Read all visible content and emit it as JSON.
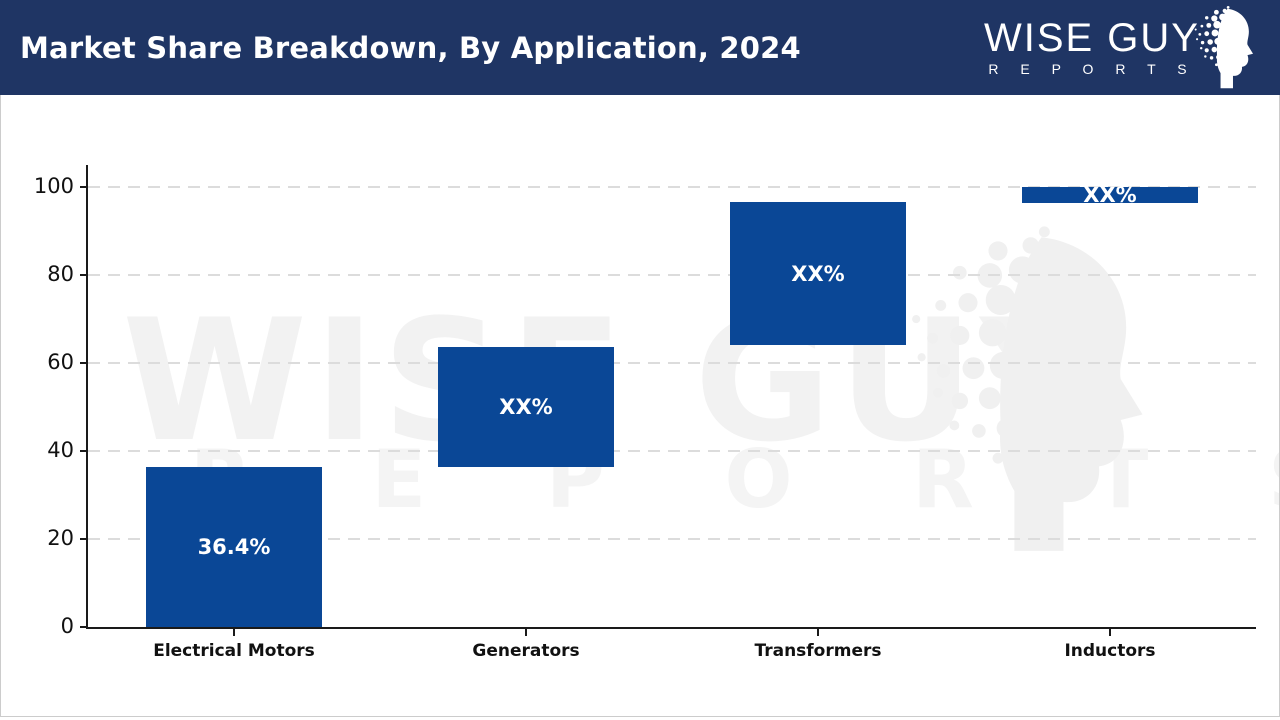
{
  "header": {
    "title": "Market Share Breakdown, By Application, 2024",
    "brand_line1": "WISE GUY",
    "brand_line2": "R E P O R T S",
    "bg_color": "#1f3564",
    "text_color": "#ffffff"
  },
  "watermark": {
    "line1": "WISE GUY",
    "line2": "R E P O R T S"
  },
  "chart_data": {
    "type": "bar",
    "subtype": "waterfall",
    "title": "Market Share Breakdown, By Application, 2024",
    "categories": [
      "Electrical Motors",
      "Generators",
      "Transformers",
      "Inductors"
    ],
    "bars": [
      {
        "category": "Electrical Motors",
        "start": 0,
        "end": 36.4,
        "label": "36.4%"
      },
      {
        "category": "Generators",
        "start": 36.4,
        "end": 63.6,
        "label": "XX%"
      },
      {
        "category": "Transformers",
        "start": 64,
        "end": 96.5,
        "label": "XX%"
      },
      {
        "category": "Inductors",
        "start": 96.4,
        "end": 100,
        "label": "XX%"
      }
    ],
    "yticks": [
      0,
      20,
      40,
      60,
      80,
      100
    ],
    "ylim": [
      0,
      105
    ],
    "xlabel": "",
    "ylabel": "",
    "grid": {
      "axis": "y",
      "style": "dashed",
      "color": "#dcdcdc"
    },
    "legend": "none",
    "bar_color": "#0a4796",
    "bar_label_color": "#ffffff",
    "axis_color": "#1a1a1a",
    "tick_label_color": "#111111"
  }
}
